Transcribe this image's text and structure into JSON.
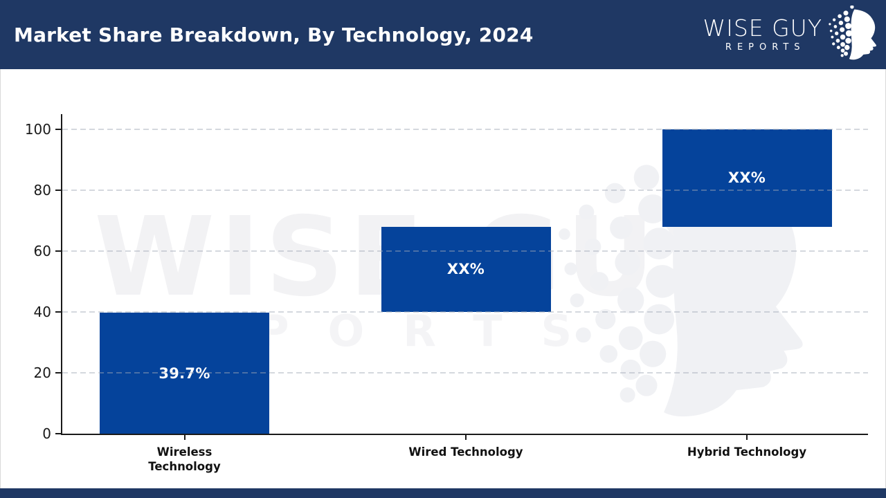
{
  "header": {
    "title": "Market Share Breakdown, By Technology, 2024"
  },
  "logo": {
    "name": "WISE GUY",
    "sub": "REPORTS"
  },
  "watermark": {
    "name": "WISE GUY",
    "sub": "REPORTS"
  },
  "chart_data": {
    "type": "bar",
    "variant": "floating-waterfall",
    "title": "Market Share Breakdown, By Technology, 2024",
    "categories": [
      "Wireless Technology",
      "Wired Technology",
      "Hybrid Technology"
    ],
    "category_labels": [
      "Wireless\nTechnology",
      "Wired Technology",
      "Hybrid Technology"
    ],
    "segments": [
      {
        "category": "Wireless Technology",
        "start": 0,
        "end": 39.7,
        "label": "39.7%"
      },
      {
        "category": "Wired Technology",
        "start": 40,
        "end": 68,
        "label": "XX%"
      },
      {
        "category": "Hybrid Technology",
        "start": 68,
        "end": 100,
        "label": "XX%"
      }
    ],
    "xlabel": "",
    "ylabel": "",
    "yticks": [
      0,
      20,
      40,
      60,
      80,
      100
    ],
    "ylim": [
      0,
      105
    ],
    "grid": "horizontal-dashed",
    "legend": "none",
    "bar_color": "#05439B"
  },
  "colors": {
    "header_bg": "#1F3864",
    "footer_bg": "#1F3864",
    "bar": "#05439B",
    "grid_dash": "#c8cdd8",
    "axis": "#1a1a1a",
    "watermark": "#f2f2f4"
  }
}
